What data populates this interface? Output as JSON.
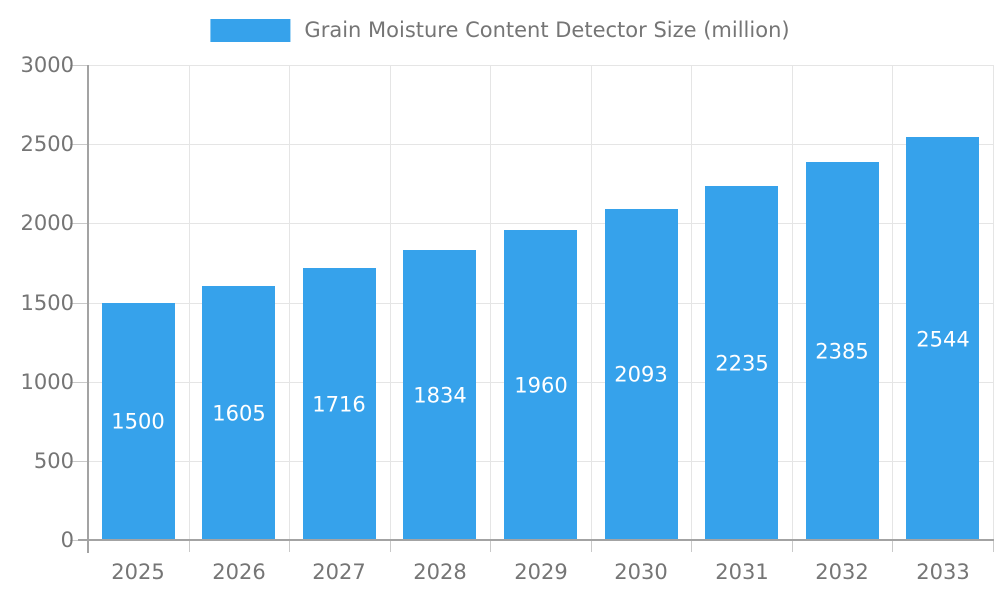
{
  "legend": {
    "label": "Grain Moisture Content Detector Size (million)"
  },
  "chart_data": {
    "type": "bar",
    "title": "Grain Moisture Content Detector Size (million)",
    "series_name": "Grain Moisture Content Detector Size (million)",
    "categories": [
      "2025",
      "2026",
      "2027",
      "2028",
      "2029",
      "2030",
      "2031",
      "2032",
      "2033"
    ],
    "values": [
      1500,
      1605,
      1716,
      1834,
      1960,
      2093,
      2235,
      2385,
      2544
    ],
    "value_labels": [
      "1500",
      "1605",
      "1716",
      "1834",
      "1960",
      "2093",
      "2235",
      "2385",
      "2544"
    ],
    "xlabel": "",
    "ylabel": "",
    "ylim": [
      0,
      3000
    ],
    "ytick_step": 500,
    "yticks": [
      "0",
      "500",
      "1000",
      "1500",
      "2000",
      "2500",
      "3000"
    ],
    "grid": true,
    "legend_position": "top",
    "colors": {
      "bar": "#36A2EB",
      "axis_text": "#757575",
      "value_text": "#ffffff",
      "gridline": "#e5e5e5",
      "tick": "#c9c9c9",
      "axis_line": "#a3a3a3",
      "background": "#ffffff"
    }
  }
}
